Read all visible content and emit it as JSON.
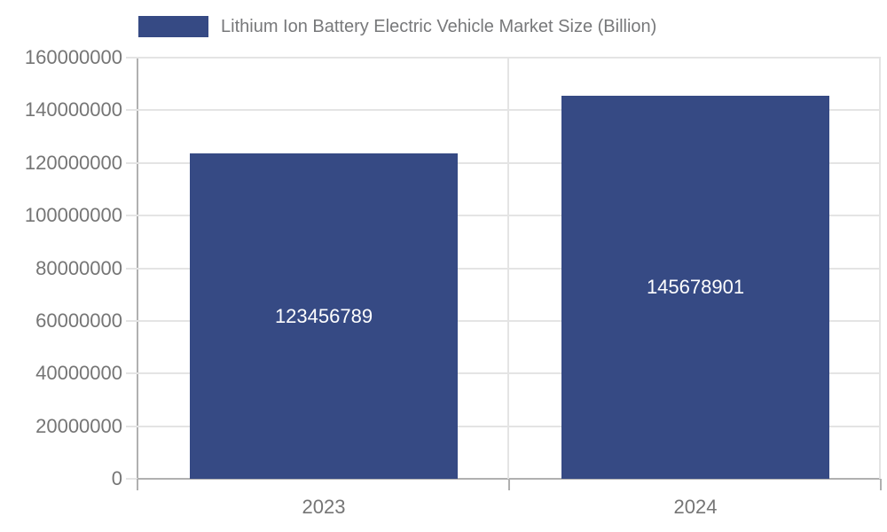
{
  "chart_data": {
    "type": "bar",
    "title": "Lithium Ion Battery Electric Vehicle Market Size (Billion)",
    "categories": [
      "2023",
      "2024"
    ],
    "values": [
      123456789,
      145678901
    ],
    "bar_labels": [
      "123456789",
      "145678901"
    ],
    "y_ticks": [
      "0",
      "20000000",
      "40000000",
      "60000000",
      "80000000",
      "100000000",
      "120000000",
      "140000000",
      "160000000"
    ],
    "ylim": [
      0,
      160000000
    ],
    "grid": true,
    "legend_position": "top-left",
    "xlabel": "",
    "ylabel": "",
    "colors": {
      "bar": "#364a84",
      "bar_label": "#ffffff",
      "grid": "#e4e4e4",
      "axis": "#b0b0b0",
      "tick_label": "#757575",
      "legend_text": "#77787a"
    }
  }
}
